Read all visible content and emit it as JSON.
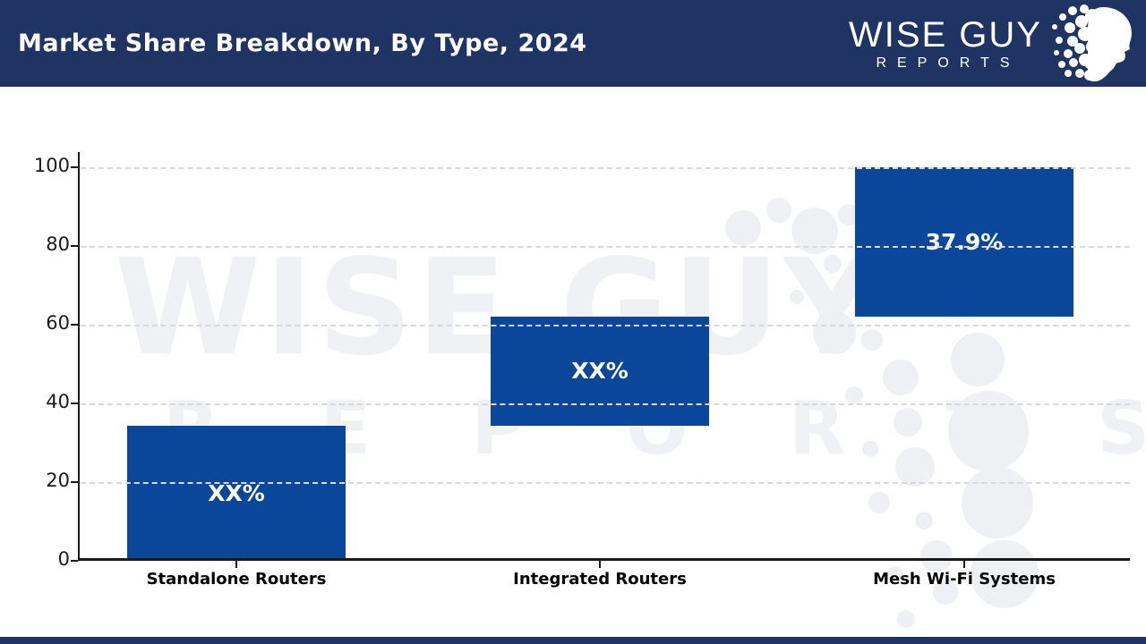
{
  "header": {
    "title": "Market Share Breakdown, By Type, 2024",
    "logo": {
      "line1": "WISE GUY",
      "line2": "REPORTS"
    }
  },
  "watermark": {
    "line1": "WISE GUY",
    "line2": "R E P O R T S"
  },
  "footer": {},
  "chart_data": {
    "type": "bar",
    "subtype": "floating-waterfall",
    "title": "Market Share Breakdown, By Type, 2024",
    "categories": [
      "Standalone Routers",
      "Integrated Routers",
      "Mesh Wi-Fi Systems"
    ],
    "segments": [
      {
        "category": "Standalone Routers",
        "start": 0,
        "end": 34.3,
        "label": "XX%"
      },
      {
        "category": "Integrated Routers",
        "start": 34.3,
        "end": 62.1,
        "label": "XX%"
      },
      {
        "category": "Mesh Wi-Fi Systems",
        "start": 62.1,
        "end": 100,
        "label": "37.9%"
      }
    ],
    "yticks": [
      0,
      20,
      40,
      60,
      80,
      100
    ],
    "ylim": [
      0,
      104
    ],
    "xlabel": "",
    "ylabel": "",
    "grid": "horizontal-dashed",
    "legend": "none",
    "bar_color": "#0a4699",
    "label_color": "#ffffff"
  },
  "colors": {
    "navy": "#1f3463",
    "bar_blue": "#0a4699",
    "axis": "#1a1a1a",
    "gridline": "#d9d9d9",
    "watermark": "#eff1f4"
  }
}
